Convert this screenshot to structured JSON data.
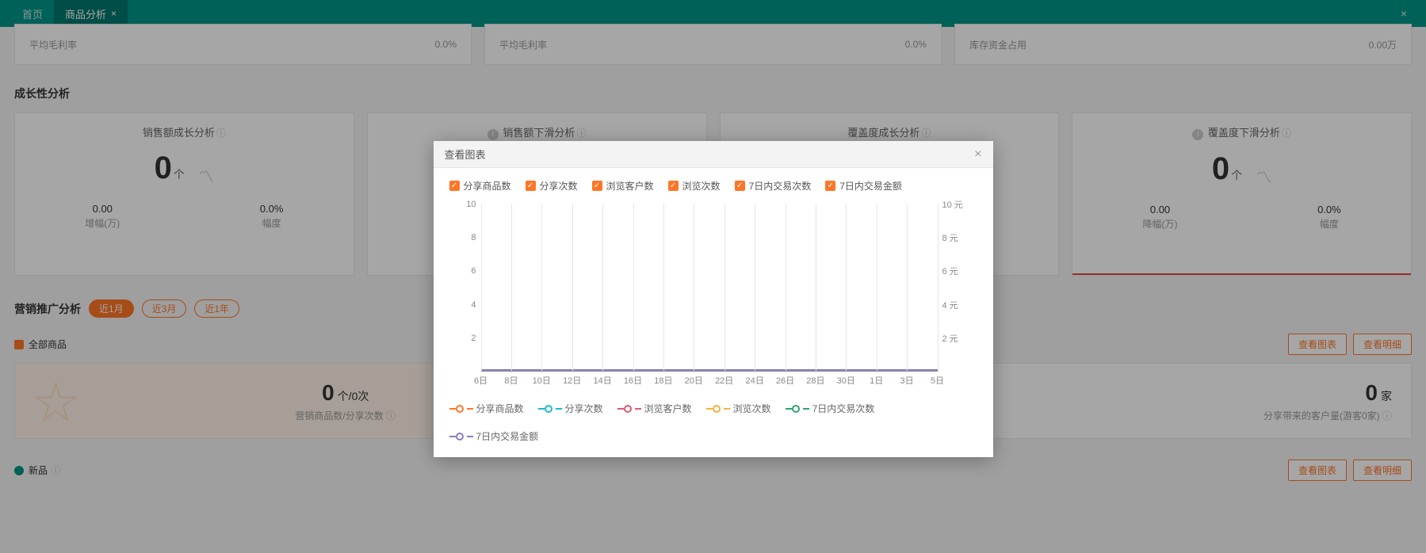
{
  "topbar": {
    "tabs": [
      {
        "label": "首页",
        "active": false
      },
      {
        "label": "商品分析",
        "active": true
      }
    ]
  },
  "kpi_top": [
    {
      "label": "平均毛利率",
      "value": "0.0%"
    },
    {
      "label": "平均毛利率",
      "value": "0.0%"
    },
    {
      "label": "库存资金占用",
      "value": "0.00万"
    }
  ],
  "growth": {
    "title": "成长性分析",
    "cards": [
      {
        "title": "销售额成长分析",
        "info": false,
        "q": true,
        "big": "0",
        "unit": "个",
        "trend": "up",
        "subs": [
          {
            "v": "0.00",
            "l": "增幅(万)"
          },
          {
            "v": "0.0%",
            "l": "幅度"
          }
        ],
        "redline": false
      },
      {
        "title": "销售额下滑分析",
        "info": true,
        "q": true,
        "big": "",
        "unit": "",
        "subs": [],
        "redline": false
      },
      {
        "title": "覆盖度成长分析",
        "info": false,
        "q": true,
        "big": "",
        "unit": "",
        "subs": [],
        "redline": false
      },
      {
        "title": "覆盖度下滑分析",
        "info": true,
        "q": true,
        "big": "0",
        "unit": "个",
        "trend": "down",
        "subs": [
          {
            "v": "0.00",
            "l": "降幅(万)"
          },
          {
            "v": "0.0%",
            "l": "幅度"
          }
        ],
        "redline": true
      }
    ]
  },
  "marketing": {
    "title": "营销推广分析",
    "pills": [
      {
        "label": "近1月",
        "active": true
      },
      {
        "label": "近3月",
        "active": false
      },
      {
        "label": "近1年",
        "active": false
      }
    ],
    "all_goods": {
      "label": "全部商品",
      "btn_chart": "查看图表",
      "btn_detail": "查看明细",
      "left": {
        "big": "0",
        "mid": "个/0次",
        "label": "营销商品数/分享次数"
      },
      "right": {
        "big": "0",
        "unit": "家",
        "label": "分享带来的客户量(游客0家)"
      }
    },
    "new_goods": {
      "label": "新品",
      "btn_chart": "查看图表",
      "btn_detail": "查看明细"
    }
  },
  "modal": {
    "title": "查看图表",
    "checks": [
      {
        "label": "分享商品数"
      },
      {
        "label": "分享次数"
      },
      {
        "label": "浏览客户数"
      },
      {
        "label": "浏览次数"
      },
      {
        "label": "7日内交易次数"
      },
      {
        "label": "7日内交易金额"
      }
    ],
    "chart": {
      "y_left": [
        "10",
        "8",
        "6",
        "4",
        "2"
      ],
      "y_right": [
        "10 元",
        "8 元",
        "6 元",
        "4 元",
        "2 元"
      ],
      "x": [
        "6日",
        "8日",
        "10日",
        "12日",
        "14日",
        "16日",
        "18日",
        "20日",
        "22日",
        "24日",
        "26日",
        "28日",
        "30日",
        "1日",
        "3日",
        "5日"
      ],
      "series_colors": {
        "share_goods": "#ff7626",
        "share_times": "#1bbccf",
        "view_cust": "#e05a6a",
        "view_times": "#f4b23f",
        "tx7": "#2fa36f",
        "amt7": "#8a7cc7"
      }
    },
    "legend2": [
      {
        "label": "分享商品数",
        "color": "#ff7626"
      },
      {
        "label": "分享次数",
        "color": "#1bbccf"
      },
      {
        "label": "浏览客户数",
        "color": "#e05a6a"
      },
      {
        "label": "浏览次数",
        "color": "#f4b23f"
      },
      {
        "label": "7日内交易次数",
        "color": "#2fa36f"
      },
      {
        "label": "7日内交易金额",
        "color": "#8a7cc7"
      }
    ]
  }
}
